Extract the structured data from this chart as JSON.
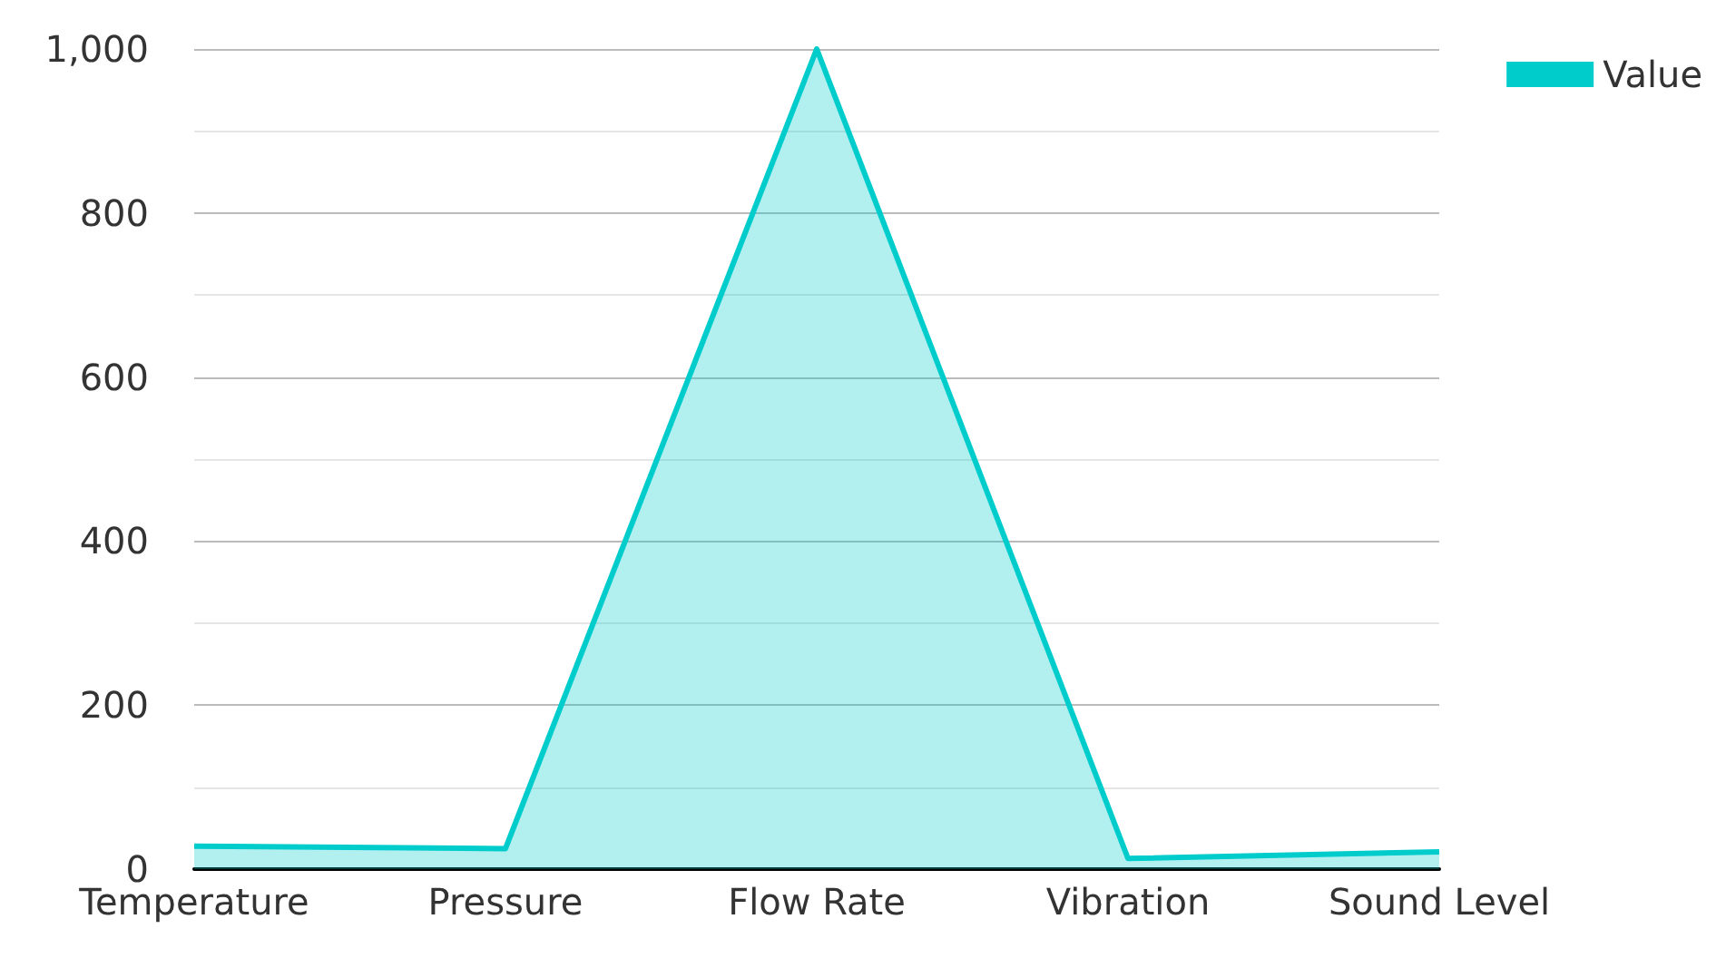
{
  "chart_data": {
    "type": "area",
    "categories": [
      "Temperature",
      "Pressure",
      "Flow Rate",
      "Vibration",
      "Sound Level"
    ],
    "series": [
      {
        "name": "Value",
        "color": "#00cccc",
        "values": [
          28,
          25,
          1000,
          13,
          21
        ]
      }
    ],
    "ylim": [
      0,
      1000
    ],
    "yticks": [
      0,
      {
        "value": 100,
        "label": null
      },
      200,
      {
        "value": 300,
        "label": null
      },
      400,
      {
        "value": 500,
        "label": null
      },
      600,
      {
        "value": 700,
        "label": null
      },
      800,
      {
        "value": 900,
        "label": null
      },
      {
        "value": 1000,
        "label": "1,000"
      }
    ],
    "grid": "y",
    "legend": "top right"
  }
}
